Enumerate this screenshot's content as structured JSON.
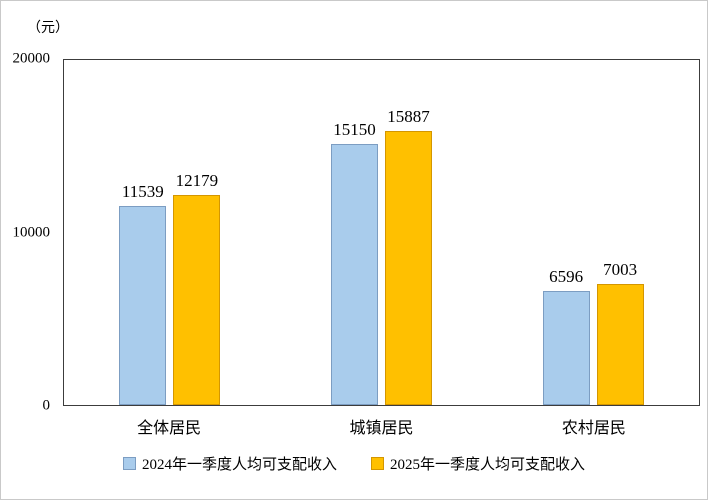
{
  "chart_data": {
    "type": "bar",
    "title": "",
    "unit_label": "（元）",
    "categories": [
      "全体居民",
      "城镇居民",
      "农村居民"
    ],
    "series": [
      {
        "name": "2024年一季度人均可支配收入",
        "values": [
          11539,
          15150,
          6596
        ],
        "fill": "#A9CCEC",
        "border": "#7C9DC2"
      },
      {
        "name": "2025年一季度人均可支配收入",
        "values": [
          12179,
          15887,
          7003
        ],
        "fill": "#FFC000",
        "border": "#D49600"
      }
    ],
    "ylim": [
      0,
      20000
    ],
    "y_ticks": [
      0,
      10000,
      20000
    ],
    "grid": false,
    "legend_position": "bottom"
  }
}
